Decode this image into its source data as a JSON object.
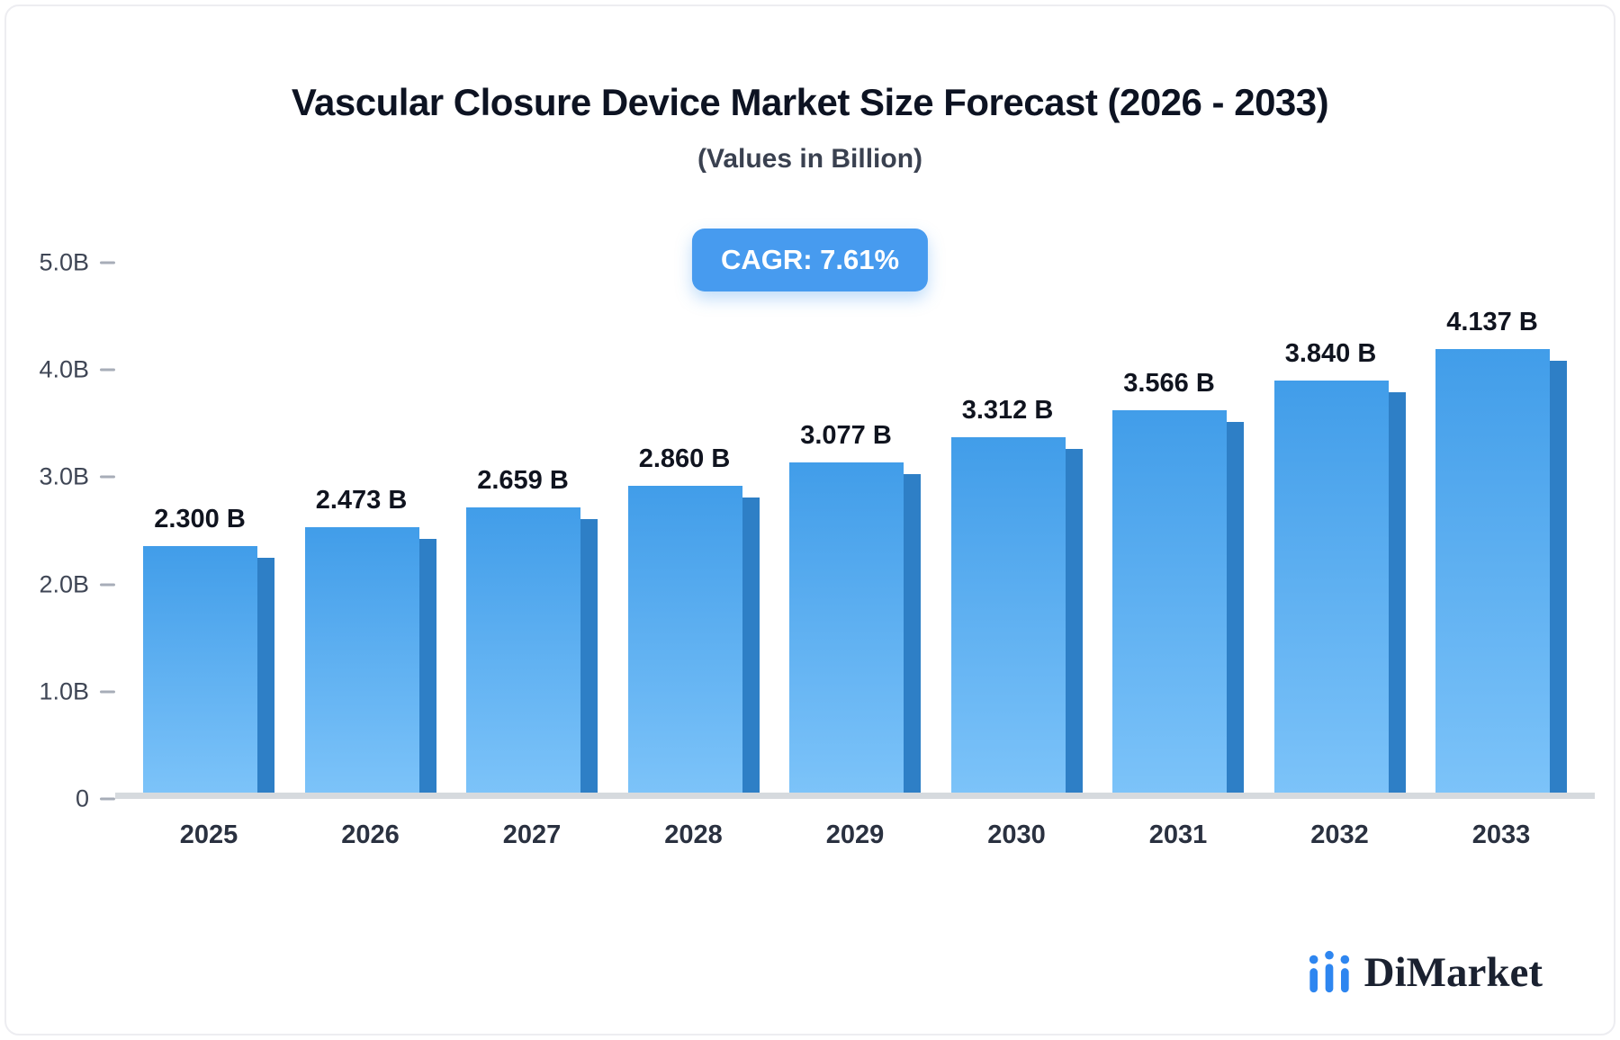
{
  "title": "Vascular Closure Device Market Size Forecast (2026 - 2033)",
  "subtitle": "(Values in Billion)",
  "badge": {
    "label": "CAGR: 7.61%",
    "bg": "#479BEF"
  },
  "logo": {
    "text": "DiMarket",
    "icon": "bar-chart-dots-icon",
    "icon_color": "#2E86F0"
  },
  "chart_data": {
    "type": "bar",
    "title": "Vascular Closure Device Market Size Forecast (2026 - 2033)",
    "subtitle": "(Values in Billion)",
    "categories": [
      "2025",
      "2026",
      "2027",
      "2028",
      "2029",
      "2030",
      "2031",
      "2032",
      "2033"
    ],
    "values": [
      2.3,
      2.473,
      2.659,
      2.86,
      3.077,
      3.312,
      3.566,
      3.84,
      4.137
    ],
    "value_labels": [
      "2.300 B",
      "2.473 B",
      "2.659 B",
      "2.860 B",
      "3.077 B",
      "3.312 B",
      "3.566 B",
      "3.840 B",
      "4.137 B"
    ],
    "xlabel": "",
    "ylabel": "",
    "ylim": [
      0,
      5.0
    ],
    "yticks": [
      "5.0B",
      "4.0B",
      "3.0B",
      "2.0B",
      "1.0B",
      "0"
    ],
    "grid": false,
    "legend": false,
    "colors": {
      "bar_gradient_top": "#419DE9",
      "bar_gradient_bottom": "#7CC3F9",
      "bar_side": "#2E7FC6"
    }
  }
}
